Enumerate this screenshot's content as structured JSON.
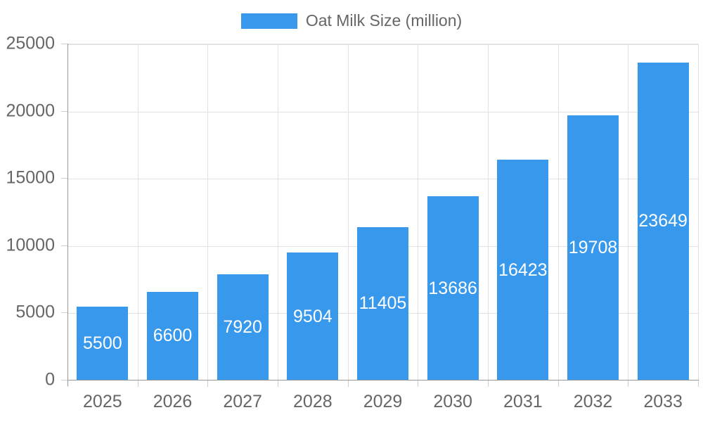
{
  "chart_data": {
    "type": "bar",
    "title": "",
    "legend": "Oat Milk Size (million)",
    "legend_position": "top",
    "categories": [
      "2025",
      "2026",
      "2027",
      "2028",
      "2029",
      "2030",
      "2031",
      "2032",
      "2033"
    ],
    "series": [
      {
        "name": "Oat Milk Size (million)",
        "values": [
          5500,
          6600,
          7920,
          9504,
          11405,
          13686,
          16423,
          19708,
          23649
        ]
      }
    ],
    "xlabel": "",
    "ylabel": "",
    "ylim": [
      0,
      25000
    ],
    "yticks": [
      0,
      5000,
      10000,
      15000,
      20000,
      25000
    ],
    "grid": true,
    "colors": {
      "bar": "#3899ec",
      "value_label": "#ffffff",
      "axis_line": "#999999",
      "gridline": "#e2e2e2",
      "tick": "#cccccc",
      "text": "#666666",
      "background": "#ffffff"
    }
  }
}
